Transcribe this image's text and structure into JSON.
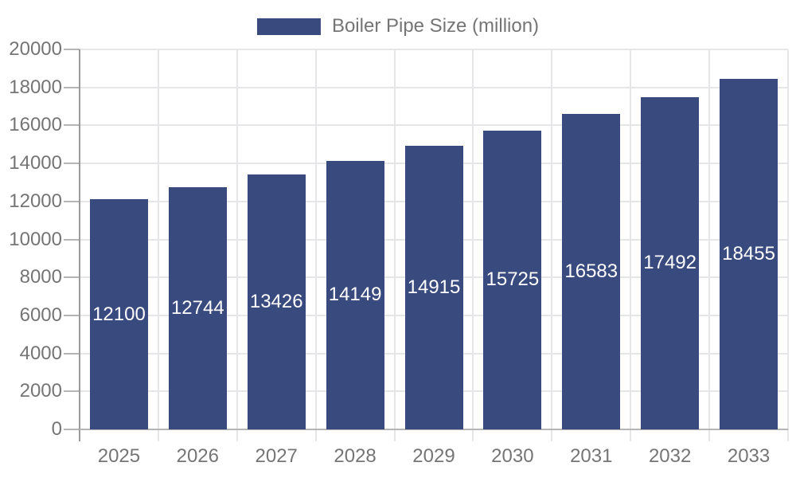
{
  "legend": {
    "label": "Boiler Pipe Size (million)"
  },
  "chart_data": {
    "type": "bar",
    "title": "Boiler Pipe Size (million)",
    "series_name": "Boiler Pipe Size (million)",
    "categories": [
      "2025",
      "2026",
      "2027",
      "2028",
      "2029",
      "2030",
      "2031",
      "2032",
      "2033"
    ],
    "values": [
      12100,
      12744,
      13426,
      14149,
      14915,
      15725,
      16583,
      17492,
      18455
    ],
    "value_labels": [
      "12100",
      "12744",
      "13426",
      "14149",
      "14915",
      "15725",
      "16583",
      "17492",
      "18455"
    ],
    "xlabel": "",
    "ylabel": "",
    "ylim": [
      0,
      20000
    ],
    "yticks": [
      0,
      2000,
      4000,
      6000,
      8000,
      10000,
      12000,
      14000,
      16000,
      18000,
      20000
    ],
    "ytick_labels": [
      "0",
      "2000",
      "4000",
      "6000",
      "8000",
      "10000",
      "12000",
      "14000",
      "16000",
      "18000",
      "20000"
    ],
    "grid": true,
    "legend_position": "top-center",
    "colors": {
      "bar": "#394A7E",
      "bar_value_text": "#ffffff",
      "axis_text": "#757575",
      "y_axis_line": "#9b9b9b",
      "x_axis_line": "#b5b5b5",
      "tick_mark": "#b5b5b5",
      "gridline": "#e6e6e9",
      "background": "#ffffff"
    }
  }
}
